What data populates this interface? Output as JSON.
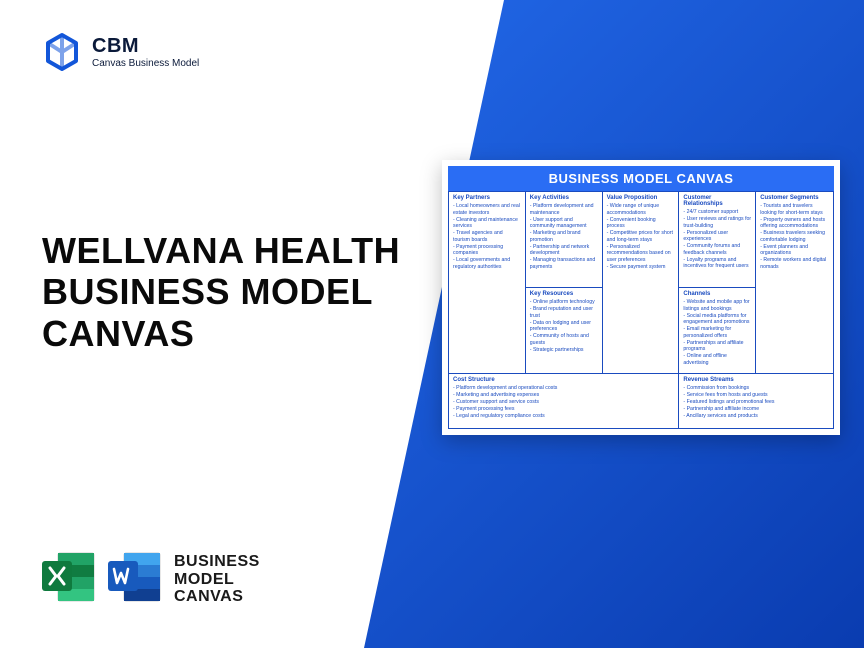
{
  "brand": {
    "name": "CBM",
    "tagline": "Canvas Business Model"
  },
  "title": "WELLVANA HEALTH BUSINESS MODEL CANVAS",
  "footer": {
    "line1": "BUSINESS",
    "line2": "MODEL",
    "line3": "CANVAS"
  },
  "canvas": {
    "title": "BUSINESS MODEL CANVAS",
    "key_partners": {
      "label": "Key Partners",
      "items": [
        "Local homeowners and real estate investors",
        "Cleaning and maintenance services",
        "Travel agencies and tourism boards",
        "Payment processing companies",
        "Local governments and regulatory authorities"
      ]
    },
    "key_activities": {
      "label": "Key Activities",
      "items": [
        "Platform development and maintenance",
        "User support and community management",
        "Marketing and brand promotion",
        "Partnership and network development",
        "Managing transactions and payments"
      ]
    },
    "value_proposition": {
      "label": "Value Proposition",
      "items": [
        "Wide range of unique accommodations",
        "Convenient booking process",
        "Competitive prices for short and long-term stays",
        "Personalized recommendations based on user preferences",
        "Secure payment system"
      ]
    },
    "customer_relationships": {
      "label": "Customer Relationships",
      "items": [
        "24/7 customer support",
        "User reviews and ratings for trust-building",
        "Personalized user experiences",
        "Community forums and feedback channels",
        "Loyalty programs and incentives for frequent users"
      ]
    },
    "customer_segments": {
      "label": "Customer Segments",
      "items": [
        "Tourists and travelers looking for short-term stays",
        "Property owners and hosts offering accommodations",
        "Business travelers seeking comfortable lodging",
        "Event planners and organizations",
        "Remote workers and digital nomads"
      ]
    },
    "key_resources": {
      "label": "Key Resources",
      "items": [
        "Online platform technology",
        "Brand reputation and user trust",
        "Data on lodging and user preferences",
        "Community of hosts and guests",
        "Strategic partnerships"
      ]
    },
    "channels": {
      "label": "Channels",
      "items": [
        "Website and mobile app for listings and bookings",
        "Social media platforms for engagement and promotions",
        "Email marketing for personalized offers",
        "Partnerships and affiliate programs",
        "Online and offline advertising"
      ]
    },
    "cost_structure": {
      "label": "Cost Structure",
      "items": [
        "Platform development and operational costs",
        "Marketing and advertising expenses",
        "Customer support and service costs",
        "Payment processing fees",
        "Legal and regulatory compliance costs"
      ]
    },
    "revenue_streams": {
      "label": "Revenue Streams",
      "items": [
        "Commission from bookings",
        "Service fees from hosts and guests",
        "Featured listings and promotional fees",
        "Partnership and affiliate income",
        "Ancillary services and products"
      ]
    }
  },
  "colors": {
    "accent": "#2a6df4",
    "canvas_border": "#1a4bbf",
    "excel_dark": "#0f7a3e",
    "excel_light": "#21a366",
    "word_dark": "#103f91",
    "word_light": "#2b7cd3"
  }
}
